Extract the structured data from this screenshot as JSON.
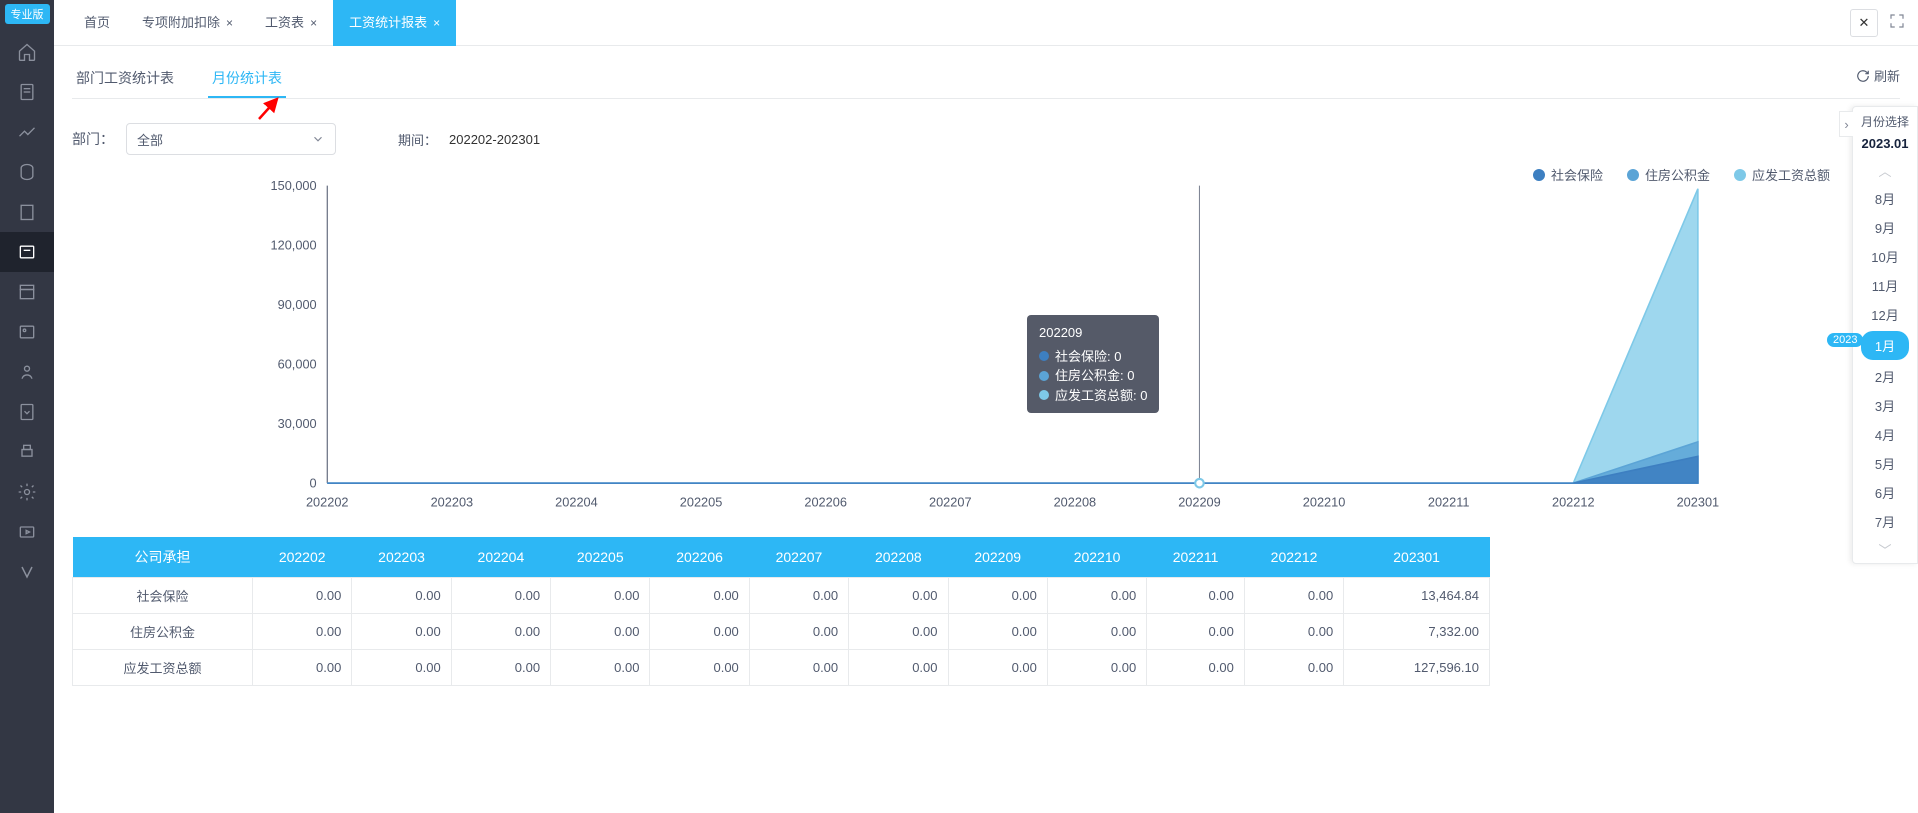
{
  "version_badge": "专业版",
  "tabs": [
    {
      "label": "首页",
      "closable": false
    },
    {
      "label": "专项附加扣除",
      "closable": true
    },
    {
      "label": "工资表",
      "closable": true
    },
    {
      "label": "工资统计报表",
      "closable": true,
      "active": true
    }
  ],
  "sub_tabs": {
    "dept": "部门工资统计表",
    "month": "月份统计表"
  },
  "refresh_label": "刷新",
  "filter": {
    "dept_label": "部门：",
    "dept_value": "全部",
    "period_label": "期间：",
    "period_value": "202202-202301"
  },
  "legend": {
    "a": {
      "label": "社会保险",
      "color": "#3d7fc1"
    },
    "b": {
      "label": "住房公积金",
      "color": "#5ba4d6"
    },
    "c": {
      "label": "应发工资总额",
      "color": "#7ec9e8"
    }
  },
  "chart": {
    "type": "area",
    "background": "#ffffff",
    "grid_color": "#e8eaec",
    "axis_color": "#515a6e",
    "y_ticks": [
      0,
      30000,
      60000,
      90000,
      120000,
      150000
    ],
    "y_tick_labels": [
      "0",
      "30,000",
      "60,000",
      "90,000",
      "120,000",
      "150,000"
    ],
    "ylim": [
      0,
      150000
    ],
    "x_categories": [
      "202202",
      "202203",
      "202204",
      "202205",
      "202206",
      "202207",
      "202208",
      "202209",
      "202210",
      "202211",
      "202212",
      "202301"
    ],
    "series": [
      {
        "name": "社会保险",
        "color": "#3d7fc1",
        "fill_opacity": 0.9,
        "values": [
          0,
          0,
          0,
          0,
          0,
          0,
          0,
          0,
          0,
          0,
          0,
          13464.84
        ]
      },
      {
        "name": "住房公积金",
        "color": "#5ba4d6",
        "fill_opacity": 0.85,
        "values": [
          0,
          0,
          0,
          0,
          0,
          0,
          0,
          0,
          0,
          0,
          0,
          20796.84
        ]
      },
      {
        "name": "应发工资总额",
        "color": "#7ec9e8",
        "fill_opacity": 0.75,
        "values": [
          0,
          0,
          0,
          0,
          0,
          0,
          0,
          0,
          0,
          0,
          0,
          148392.94
        ]
      }
    ],
    "hover_line_x_index": 7,
    "tooltip": {
      "title": "202209",
      "rows": [
        {
          "label": "社会保险: 0",
          "color": "#3d7fc1"
        },
        {
          "label": "住房公积金: 0",
          "color": "#5ba4d6"
        },
        {
          "label": "应发工资总额: 0",
          "color": "#7ec9e8"
        }
      ]
    }
  },
  "table": {
    "header_first": "公司承担",
    "columns": [
      "202202",
      "202203",
      "202204",
      "202205",
      "202206",
      "202207",
      "202208",
      "202209",
      "202210",
      "202211",
      "202212",
      "202301"
    ],
    "rows": [
      {
        "label": "社会保险",
        "values": [
          "0.00",
          "0.00",
          "0.00",
          "0.00",
          "0.00",
          "0.00",
          "0.00",
          "0.00",
          "0.00",
          "0.00",
          "0.00",
          "13,464.84"
        ]
      },
      {
        "label": "住房公积金",
        "values": [
          "0.00",
          "0.00",
          "0.00",
          "0.00",
          "0.00",
          "0.00",
          "0.00",
          "0.00",
          "0.00",
          "0.00",
          "0.00",
          "7,332.00"
        ]
      },
      {
        "label": "应发工资总额",
        "values": [
          "0.00",
          "0.00",
          "0.00",
          "0.00",
          "0.00",
          "0.00",
          "0.00",
          "0.00",
          "0.00",
          "0.00",
          "0.00",
          "127,596.10"
        ]
      }
    ]
  },
  "month_panel": {
    "title": "月份选择",
    "current_year": "2023.01",
    "year_tag": "2023",
    "months": [
      "8月",
      "9月",
      "10月",
      "11月",
      "12月",
      "1月",
      "2月",
      "3月",
      "4月",
      "5月",
      "6月",
      "7月"
    ],
    "current_index": 5
  }
}
